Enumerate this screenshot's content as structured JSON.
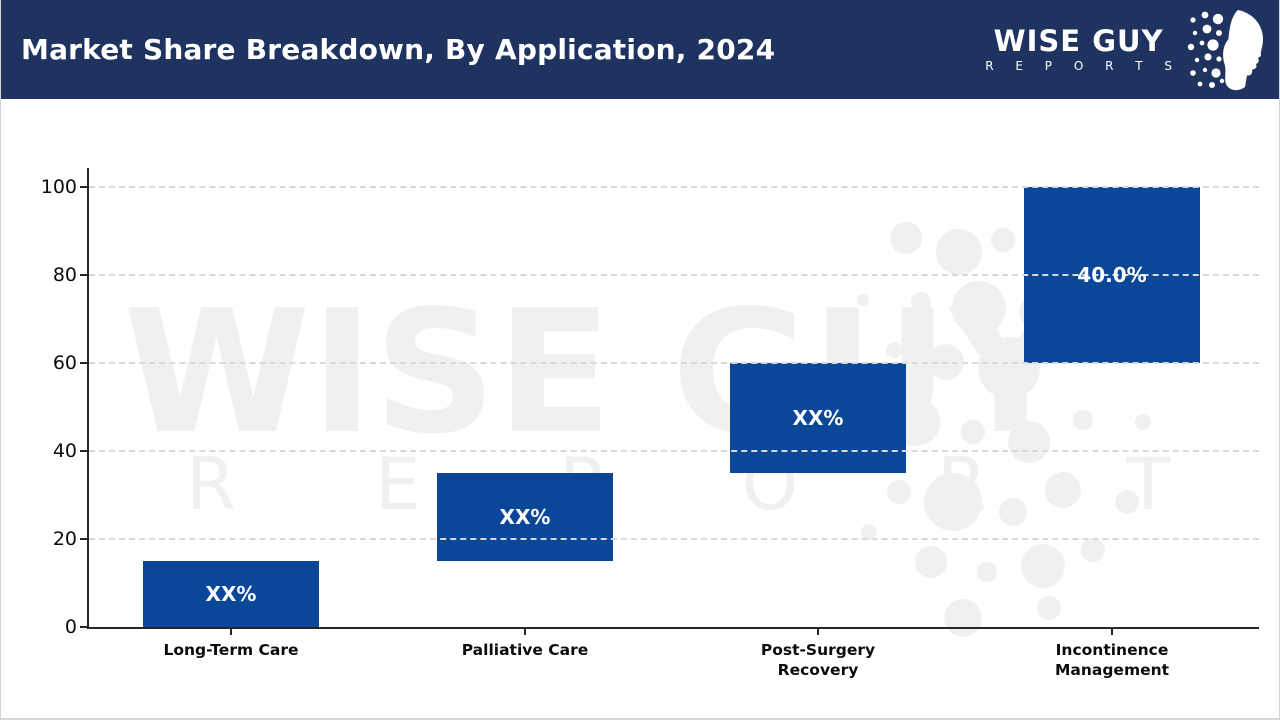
{
  "header": {
    "title": "Market Share Breakdown, By Application, 2024",
    "logo": {
      "wordmark": "WISE GUY",
      "subtext": "R E P O R T S"
    }
  },
  "watermark": {
    "wordmark": "WISE GUY",
    "subtext": "R E P O R T S"
  },
  "colors": {
    "header_bg": "#1f3361",
    "bar_fill": "#0b4799",
    "bar_label": "#ffffff",
    "gridline": "#d9d9d9",
    "axis": "#262626",
    "watermark": "#f0f0f3",
    "page_border": "#d6d6d6"
  },
  "chart_data": {
    "type": "bar",
    "subtype": "floating-waterfall",
    "title": "Market Share Breakdown, By Application, 2024",
    "categories": [
      "Long-Term Care",
      "Palliative Care",
      "Post-Surgery\nRecovery",
      "Incontinence\nManagement"
    ],
    "segments": [
      {
        "category": "Long-Term Care",
        "start": 0,
        "end": 15,
        "value": 15,
        "label": "XX%"
      },
      {
        "category": "Palliative Care",
        "start": 15,
        "end": 35,
        "value": 20,
        "label": "XX%"
      },
      {
        "category": "Post-Surgery Recovery",
        "start": 35,
        "end": 60,
        "value": 25,
        "label": "XX%"
      },
      {
        "category": "Incontinence Management",
        "start": 60,
        "end": 100,
        "value": 40,
        "label": "40.0%"
      }
    ],
    "xlabel": "",
    "ylabel": "",
    "yticks": [
      0,
      20,
      40,
      60,
      80,
      100
    ],
    "ylim": [
      0,
      105
    ],
    "grid": "horizontal-dashed",
    "legend": null
  }
}
